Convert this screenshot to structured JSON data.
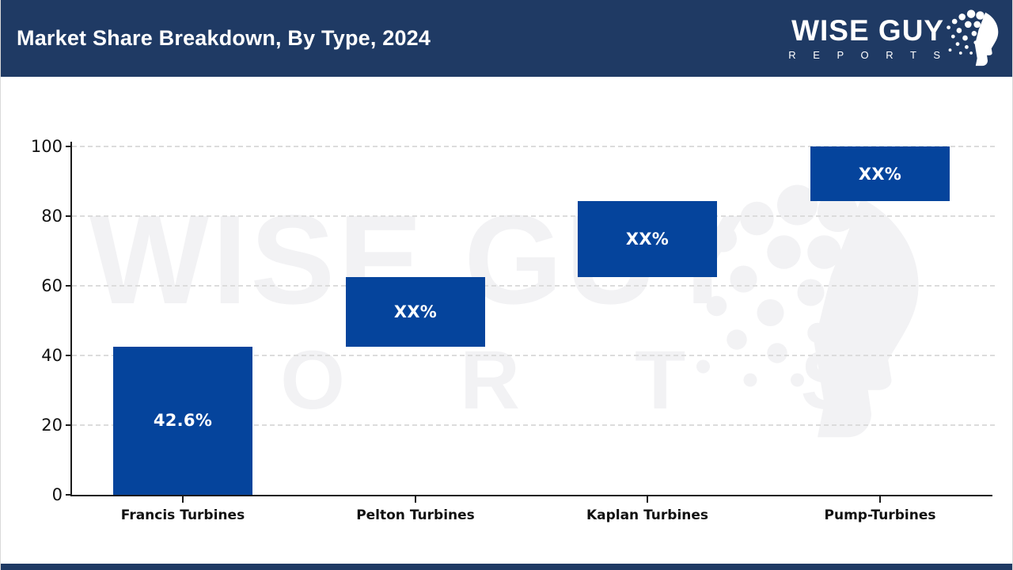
{
  "header": {
    "title": "Market Share Breakdown, By Type, 2024",
    "bg_color": "#1F3A64",
    "logo": {
      "line1": "WISE GUY",
      "line2": "R E P O R T S",
      "head_icon": "dotted-head-profile-icon"
    }
  },
  "chart_data": {
    "type": "bar",
    "subtype": "waterfall",
    "title": "Market Share Breakdown, By Type, 2024",
    "categories": [
      "Francis Turbines",
      "Pelton Turbines",
      "Kaplan Turbines",
      "Pump-Turbines"
    ],
    "segments": [
      {
        "category": "Francis Turbines",
        "start": 0,
        "end": 42.6,
        "label": "42.6%"
      },
      {
        "category": "Pelton Turbines",
        "start": 42.6,
        "end": 62.5,
        "label": "XX%"
      },
      {
        "category": "Kaplan Turbines",
        "start": 62.5,
        "end": 84.3,
        "label": "XX%"
      },
      {
        "category": "Pump-Turbines",
        "start": 84.3,
        "end": 100,
        "label": "XX%"
      }
    ],
    "xlabel": "",
    "ylabel": "",
    "ylim": [
      0,
      100
    ],
    "yticks": [
      0,
      20,
      40,
      60,
      80,
      100
    ],
    "grid": "horizontal-dashed",
    "legend_position": "none",
    "bar_color": "#05449C",
    "bar_label_color": "#FFFFFF",
    "axis_color": "#1A1A1A",
    "gridline_color": "#DCDCDC"
  },
  "watermark": {
    "line1": "WISE GUY",
    "line2": "P O R T S"
  }
}
